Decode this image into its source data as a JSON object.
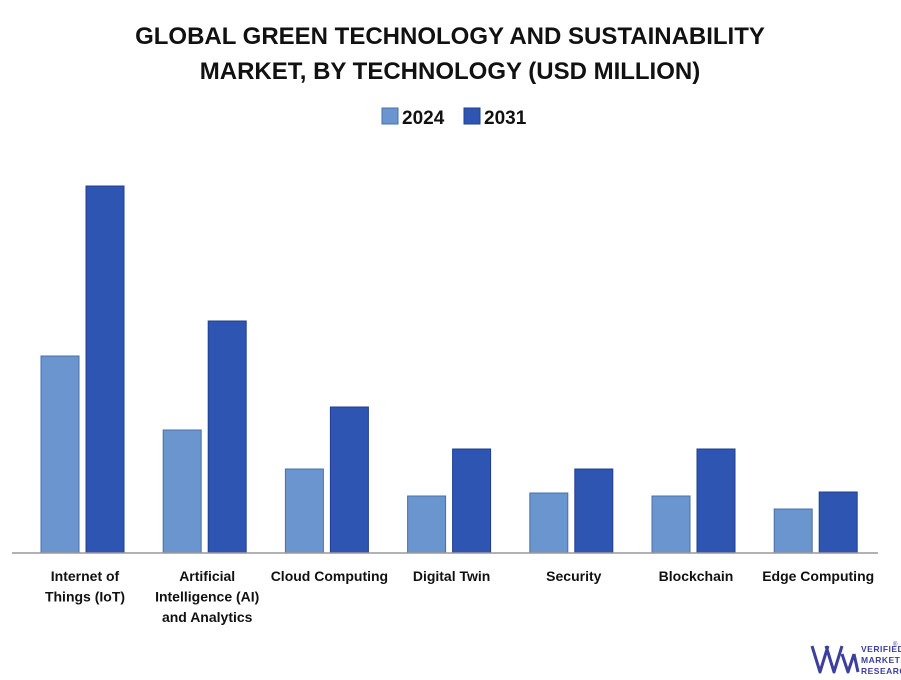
{
  "chart_data": {
    "type": "bar",
    "title_lines": [
      "GLOBAL GREEN TECHNOLOGY AND SUSTAINABILITY",
      "MARKET, BY TECHNOLOGY (USD MILLION)"
    ],
    "categories": [
      "Internet of Things (IoT)",
      "Artificial Intelligence (AI) and Analytics",
      "Cloud Computing",
      "Digital Twin",
      "Security",
      "Blockchain",
      "Edge Computing"
    ],
    "category_label_lines": [
      [
        "Internet of",
        "Things (IoT)"
      ],
      [
        "Artificial",
        "Intelligence (AI)",
        "and Analytics"
      ],
      [
        "Cloud Computing"
      ],
      [
        "Digital Twin"
      ],
      [
        "Security"
      ],
      [
        "Blockchain"
      ],
      [
        "Edge Computing"
      ]
    ],
    "series": [
      {
        "name": "2024",
        "color": "#6a95cf",
        "values": [
          197,
          123,
          84,
          57,
          60,
          57,
          44
        ]
      },
      {
        "name": "2031",
        "color": "#2f55b2",
        "values": [
          367,
          232,
          146,
          104,
          84,
          104,
          61
        ]
      }
    ],
    "ylim": [
      0,
      400
    ],
    "xlabel": "",
    "ylabel": "",
    "grid": false,
    "legend_position": "top-center"
  },
  "logo": {
    "lines": [
      "VERIFIED",
      "MARKET",
      "RESEARCH"
    ],
    "registered": "®",
    "color": "#3b3f9e"
  }
}
